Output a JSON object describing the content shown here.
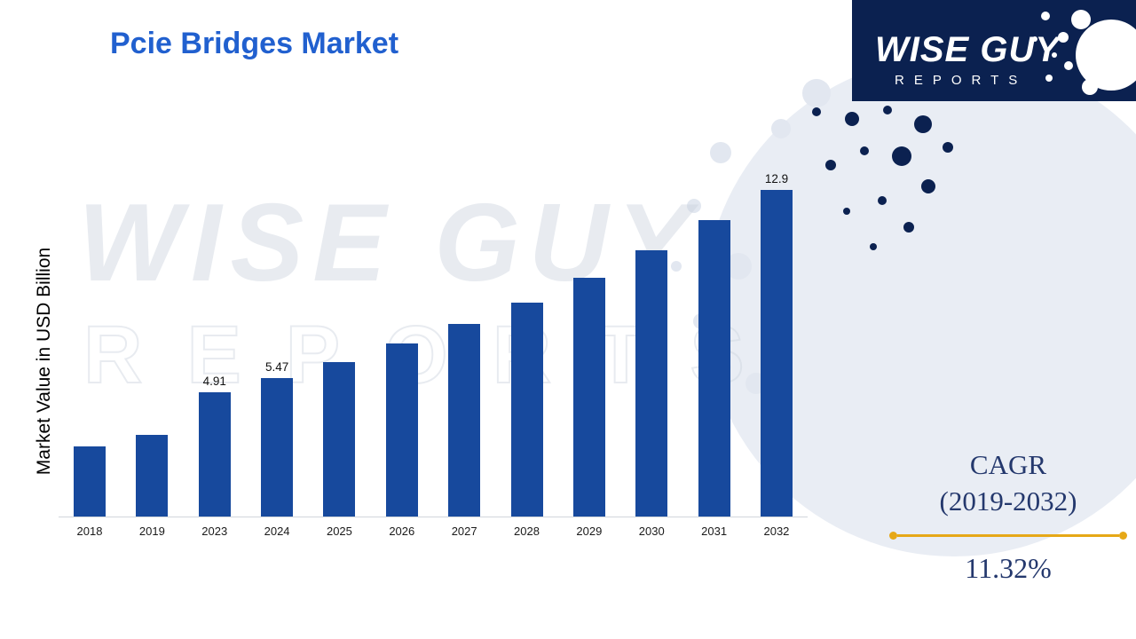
{
  "title": "Pcie Bridges Market",
  "logo": {
    "line1": "WISE GUY",
    "line2": "REPORTS"
  },
  "watermark": {
    "line1": "WISE GUY",
    "line2": "REPORTS"
  },
  "cagr": {
    "label": "CAGR",
    "range": "(2019-2032)",
    "value": "11.32%"
  },
  "colors": {
    "title": "#2160cf",
    "bar": "#17499d",
    "navy": "#0b2150",
    "gold": "#e6a817",
    "cagr_text": "#24386d"
  },
  "chart_data": {
    "type": "bar",
    "title": "Pcie Bridges Market",
    "xlabel": "",
    "ylabel": "Market Value in USD Billion",
    "categories": [
      "2018",
      "2019",
      "2023",
      "2024",
      "2025",
      "2026",
      "2027",
      "2028",
      "2029",
      "2030",
      "2031",
      "2032"
    ],
    "values": [
      2.77,
      3.22,
      4.91,
      5.47,
      6.12,
      6.85,
      7.62,
      8.47,
      9.43,
      10.53,
      11.73,
      12.9
    ],
    "data_labels": [
      "",
      "",
      "4.91",
      "5.47",
      "",
      "",
      "",
      "",
      "",
      "",
      "",
      "12.9"
    ],
    "ylim": [
      0,
      14
    ],
    "grid": false,
    "legend": false,
    "bar_color": "#17499d"
  }
}
